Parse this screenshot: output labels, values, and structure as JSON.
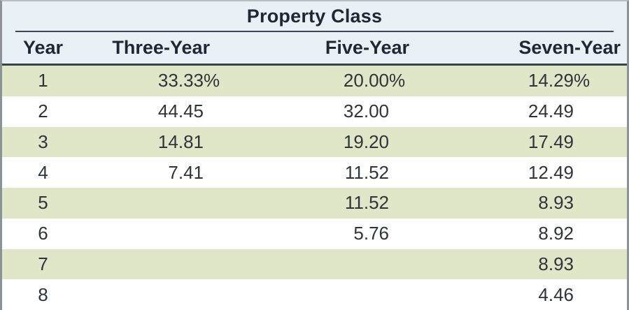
{
  "table": {
    "title": "Property Class",
    "columns": {
      "year": "Year",
      "three": "Three-Year",
      "five": "Five-Year",
      "seven": "Seven-Year"
    },
    "rows": [
      {
        "year": "1",
        "three": "33.33",
        "three_sfx": "%",
        "five": "20.00",
        "five_sfx": "%",
        "seven": "14.29",
        "seven_sfx": "%"
      },
      {
        "year": "2",
        "three": "44.45",
        "three_sfx": "",
        "five": "32.00",
        "five_sfx": "",
        "seven": "24.49",
        "seven_sfx": ""
      },
      {
        "year": "3",
        "three": "14.81",
        "three_sfx": "",
        "five": "19.20",
        "five_sfx": "",
        "seven": "17.49",
        "seven_sfx": ""
      },
      {
        "year": "4",
        "three": "7.41",
        "three_sfx": "",
        "five": "11.52",
        "five_sfx": "",
        "seven": "12.49",
        "seven_sfx": ""
      },
      {
        "year": "5",
        "three": "",
        "three_sfx": "",
        "five": "11.52",
        "five_sfx": "",
        "seven": "8.93",
        "seven_sfx": ""
      },
      {
        "year": "6",
        "three": "",
        "three_sfx": "",
        "five": "5.76",
        "five_sfx": "",
        "seven": "8.92",
        "seven_sfx": ""
      },
      {
        "year": "7",
        "three": "",
        "three_sfx": "",
        "five": "",
        "five_sfx": "",
        "seven": "8.93",
        "seven_sfx": ""
      },
      {
        "year": "8",
        "three": "",
        "three_sfx": "",
        "five": "",
        "five_sfx": "",
        "seven": "4.46",
        "seven_sfx": ""
      }
    ]
  },
  "colors": {
    "header_background": "#e9f1f7",
    "row_stripe_green": "#e0e6c8",
    "row_stripe_white": "#ffffff",
    "heading_text": "#1f2735",
    "data_text": "#30343a",
    "outer_border": "#8d9296",
    "heavy_rule": "#39424a",
    "title_divider": "#3f4854"
  }
}
